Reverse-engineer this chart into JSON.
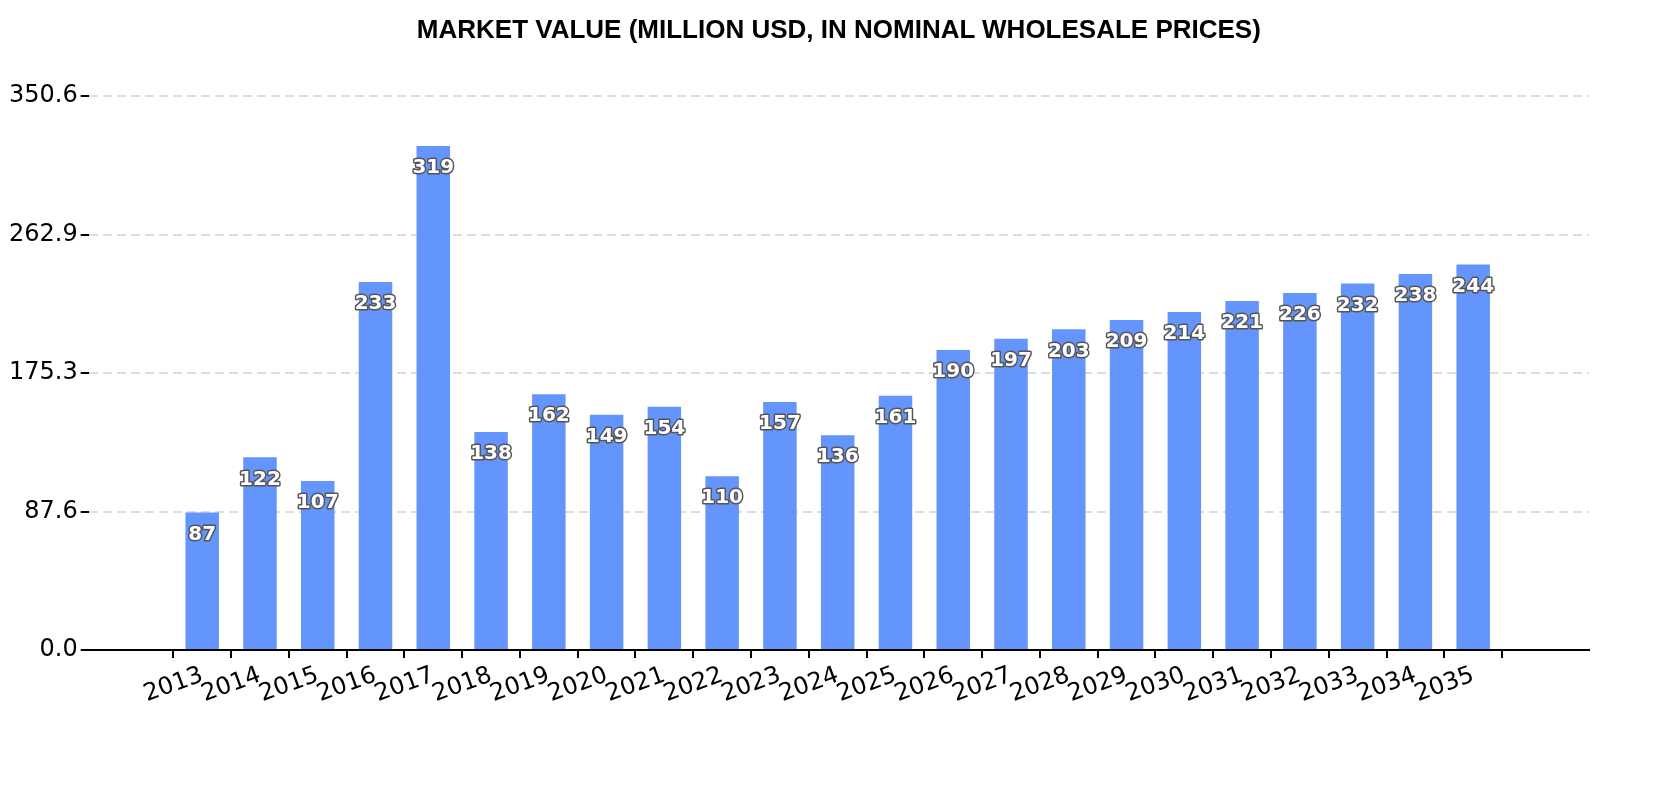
{
  "chart_data": {
    "type": "bar",
    "title": "MARKET VALUE (MILLION USD, IN NOMINAL WHOLESALE PRICES)",
    "categories": [
      "2013",
      "2014",
      "2015",
      "2016",
      "2017",
      "2018",
      "2019",
      "2020",
      "2021",
      "2022",
      "2023",
      "2024",
      "2025",
      "2026",
      "2027",
      "2028",
      "2029",
      "2030",
      "2031",
      "2032",
      "2033",
      "2034",
      "2035"
    ],
    "values": [
      87,
      122,
      107,
      233,
      319,
      138,
      162,
      149,
      154,
      110,
      157,
      136,
      161,
      190,
      197,
      203,
      209,
      214,
      221,
      226,
      232,
      238,
      244
    ],
    "color": "#6495fd",
    "ylim": [
      0,
      350.6
    ],
    "yticks": [
      {
        "value": 0,
        "label": "0.0"
      },
      87.6,
      175.3,
      262.9,
      350.6
    ],
    "grid": "y",
    "data_labels": true
  }
}
